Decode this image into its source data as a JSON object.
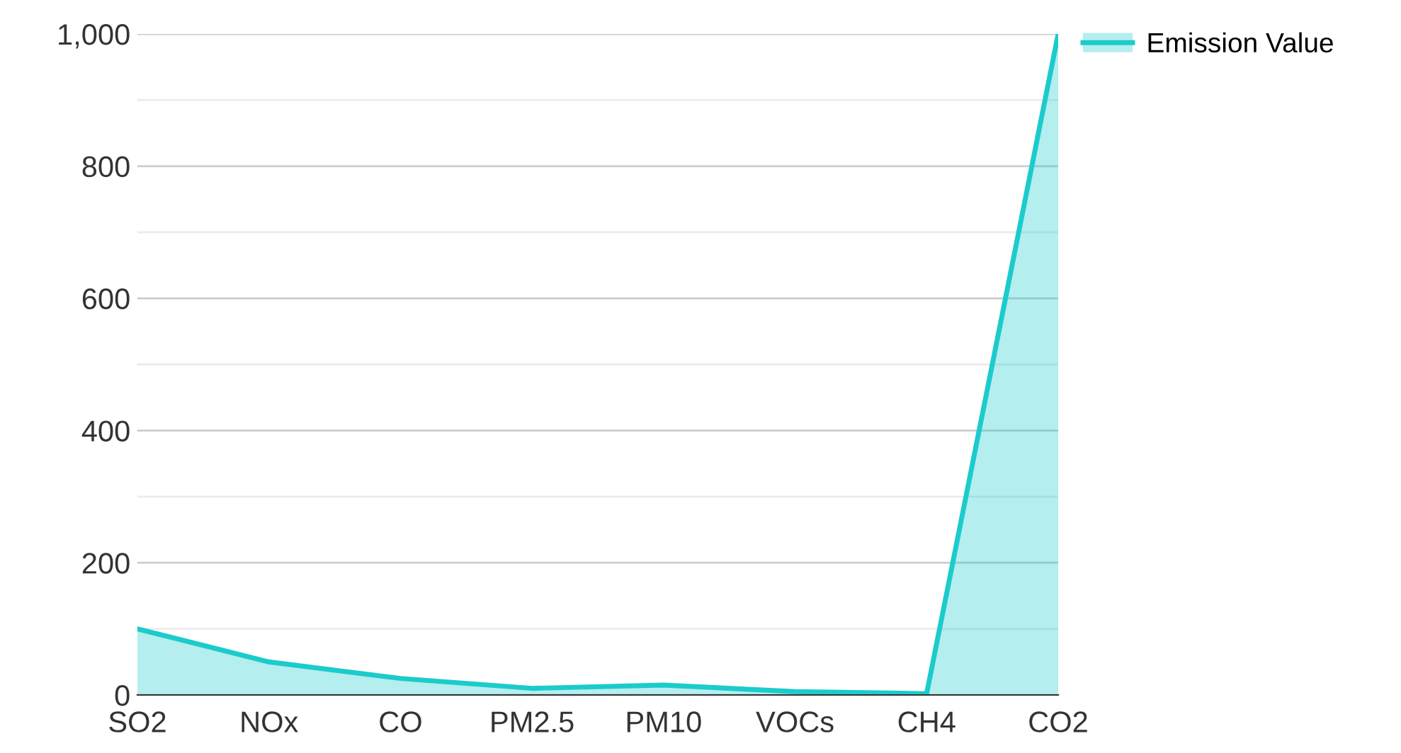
{
  "chart_data": {
    "type": "area",
    "categories": [
      "SO2",
      "NOx",
      "CO",
      "PM2.5",
      "PM10",
      "VOCs",
      "CH4",
      "CO2"
    ],
    "series": [
      {
        "name": "Emission Value",
        "color": "#1ccbcb",
        "values": [
          100,
          50,
          25,
          10,
          15,
          5,
          2,
          1000
        ]
      }
    ],
    "ylim": [
      0,
      1000
    ],
    "yticks": [
      0,
      {
        "value": 100,
        "label": null
      },
      200,
      {
        "value": 300,
        "label": null
      },
      400,
      {
        "value": 500,
        "label": null
      },
      600,
      {
        "value": 700,
        "label": null
      },
      800,
      {
        "value": 900,
        "label": null
      },
      {
        "value": 1000,
        "label": "1,000"
      }
    ],
    "grid": "y",
    "legend": "top right"
  }
}
